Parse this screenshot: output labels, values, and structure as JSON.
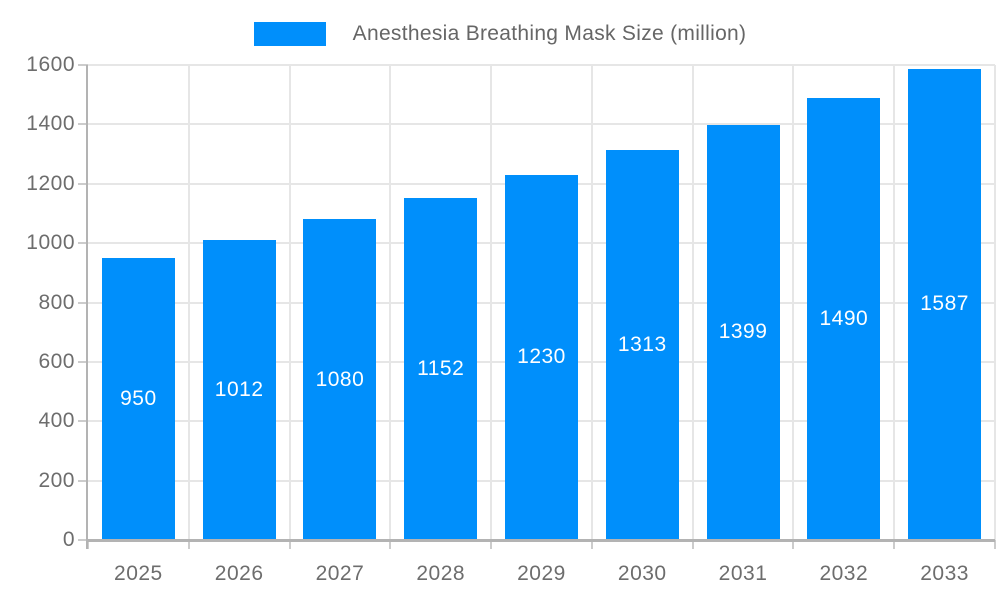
{
  "legend": {
    "label": "Anesthesia Breathing Mask Size (million)"
  },
  "colors": {
    "bar": "#008ffb",
    "grid": "#e6e6e6",
    "tick": "#cccccc",
    "axis": "#b3b3b3",
    "axis_label": "#6d6d6d",
    "value_label": "#ffffff",
    "legend_text": "#666666",
    "background": "#ffffff"
  },
  "chart_data": {
    "type": "bar",
    "title": "Anesthesia Breathing Mask Size (million)",
    "categories": [
      "2025",
      "2026",
      "2027",
      "2028",
      "2029",
      "2030",
      "2031",
      "2032",
      "2033"
    ],
    "values": [
      950,
      1012,
      1080,
      1152,
      1230,
      1313,
      1399,
      1490,
      1587
    ],
    "xlabel": "",
    "ylabel": "",
    "ylim": [
      0,
      1600
    ],
    "yticks": [
      0,
      200,
      400,
      600,
      800,
      1000,
      1200,
      1400,
      1600
    ],
    "grid": true,
    "legend_position": "top",
    "value_label_position": "inside-center"
  }
}
